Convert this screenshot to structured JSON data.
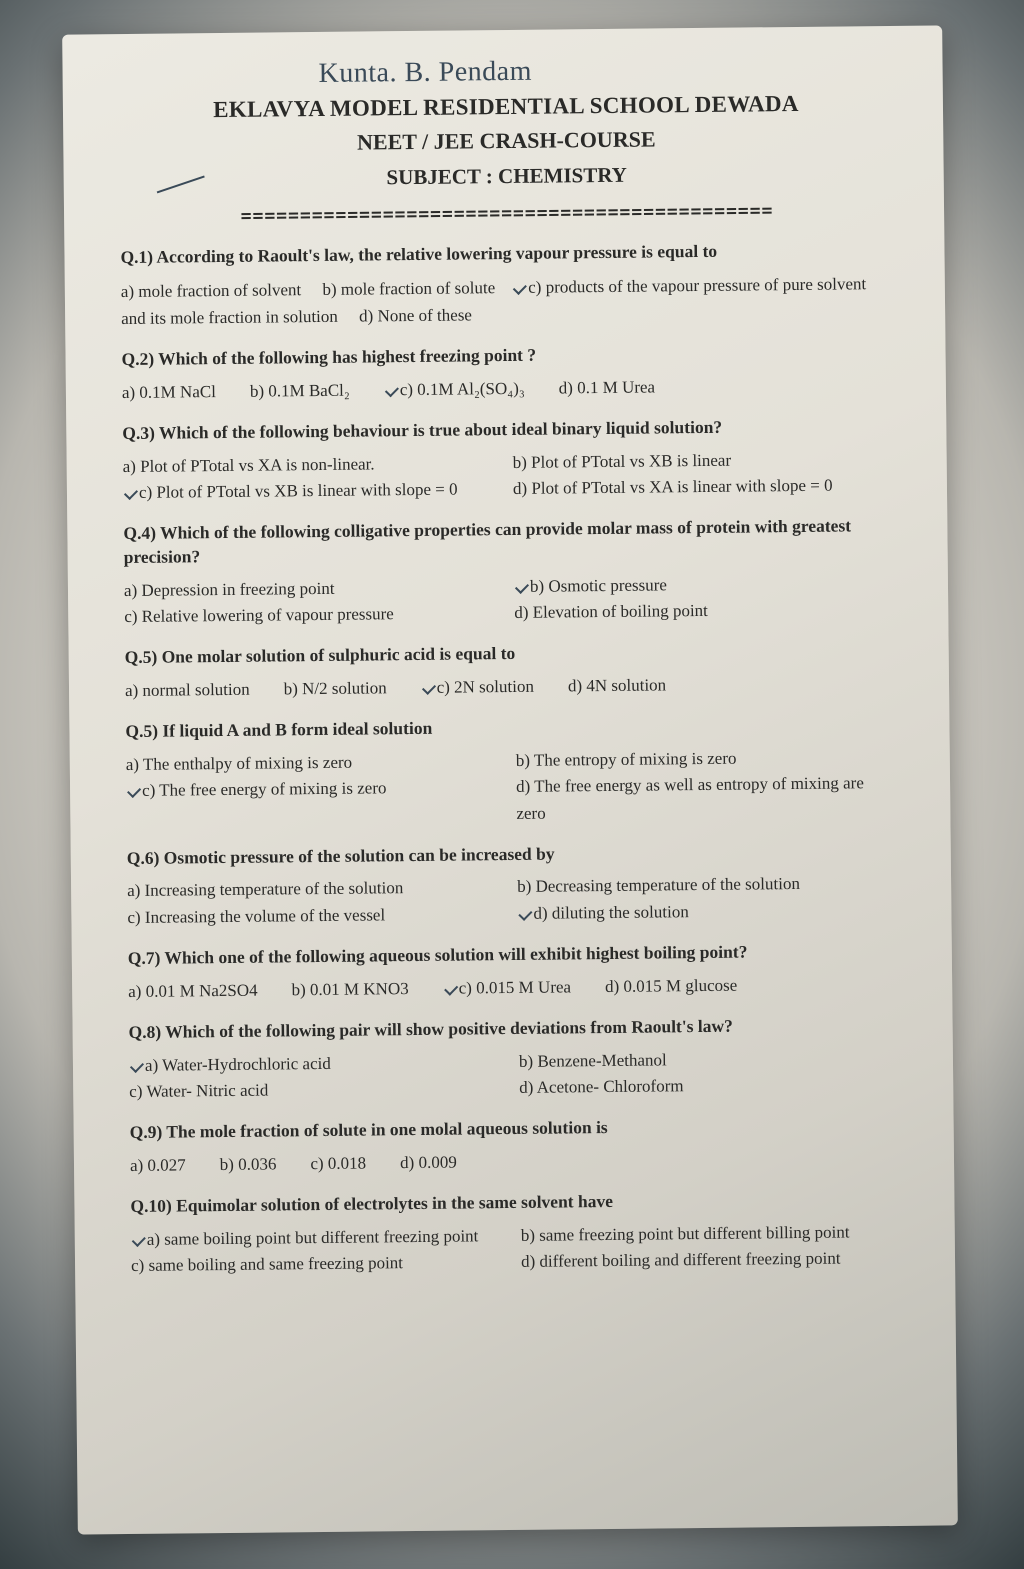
{
  "handwriting": "Kunta. B. Pendam",
  "header": {
    "school": "EKLAVYA MODEL RESIDENTIAL SCHOOL DEWADA",
    "course": "NEET / JEE  CRASH-COURSE",
    "subject": "SUBJECT : CHEMISTRY"
  },
  "separator": "=============================================",
  "q1": {
    "text": "Q.1) According to Raoult's law, the relative lowering vapour pressure is equal to",
    "a": "a) mole fraction of solvent",
    "b": "b) mole fraction of solute",
    "c": "c) products of the vapour pressure of pure solvent and its mole fraction in solution",
    "d": "d) None of these"
  },
  "q2": {
    "text": "Q.2) Which of the following has highest freezing point ?",
    "a": "a) 0.1M NaCl",
    "b": "b) 0.1M BaCl₂",
    "c": "c) 0.1M Al₂(SO₄)₃",
    "d": "d) 0.1 M Urea"
  },
  "q3": {
    "text": "Q.3) Which of the following behaviour is true about ideal binary liquid solution?",
    "a": "a) Plot of PTotal vs XA is non-linear.",
    "b": "b) Plot of PTotal vs XB is linear",
    "c": "c) Plot of PTotal vs XB is linear with slope = 0",
    "d": "d) Plot of PTotal vs XA is linear with slope = 0"
  },
  "q4": {
    "text": "Q.4) Which of the following colligative properties can provide molar mass of protein with greatest precision?",
    "a": "a) Depression in freezing point",
    "b": "b) Osmotic pressure",
    "c": "c) Relative lowering of vapour pressure",
    "d": "d) Elevation of boiling point"
  },
  "q5": {
    "text": "Q.5) One molar solution of sulphuric acid is equal to",
    "a": "a) normal solution",
    "b": "b) N/2 solution",
    "c": "c) 2N solution",
    "d": "d) 4N solution"
  },
  "q5b": {
    "text": "Q.5) If liquid A and B form ideal solution",
    "a": "a) The enthalpy of mixing is zero",
    "b": "b) The entropy of mixing is zero",
    "c": "c) The free energy of mixing is zero",
    "d": "d) The free energy as well as entropy of mixing are zero"
  },
  "q6": {
    "text": "Q.6) Osmotic pressure of the solution can be increased by",
    "a": "a) Increasing temperature of the solution",
    "b": "b) Decreasing temperature of the solution",
    "c": "c) Increasing the volume of the vessel",
    "d": "d) diluting the solution"
  },
  "q7": {
    "text": "Q.7) Which one of the following aqueous solution will exhibit highest boiling point?",
    "a": "a) 0.01 M Na2SO4",
    "b": "b) 0.01 M KNO3",
    "c": "c) 0.015 M Urea",
    "d": "d) 0.015 M glucose"
  },
  "q8": {
    "text": "Q.8) Which of the following pair will show positive deviations from Raoult's law?",
    "a": "a) Water-Hydrochloric acid",
    "b": "b) Benzene-Methanol",
    "c": "c) Water- Nitric acid",
    "d": "d) Acetone- Chloroform"
  },
  "q9": {
    "text": "Q.9) The mole fraction of solute in one molal aqueous solution is",
    "a": "a) 0.027",
    "b": "b) 0.036",
    "c": "c) 0.018",
    "d": "d) 0.009"
  },
  "q10": {
    "text": "Q.10) Equimolar solution of electrolytes in the same solvent have",
    "a": "a) same boiling point but different freezing point",
    "b": "b) same freezing point but different billing point",
    "c": "c) same boiling and same freezing point",
    "d": "d) different boiling and different freezing point"
  },
  "colors": {
    "ink": "#2a2a28",
    "pen": "#3a4a58",
    "paper_light": "#eceae2",
    "paper_dark": "#bdbcb4",
    "bg_dark": "#2a3538"
  }
}
